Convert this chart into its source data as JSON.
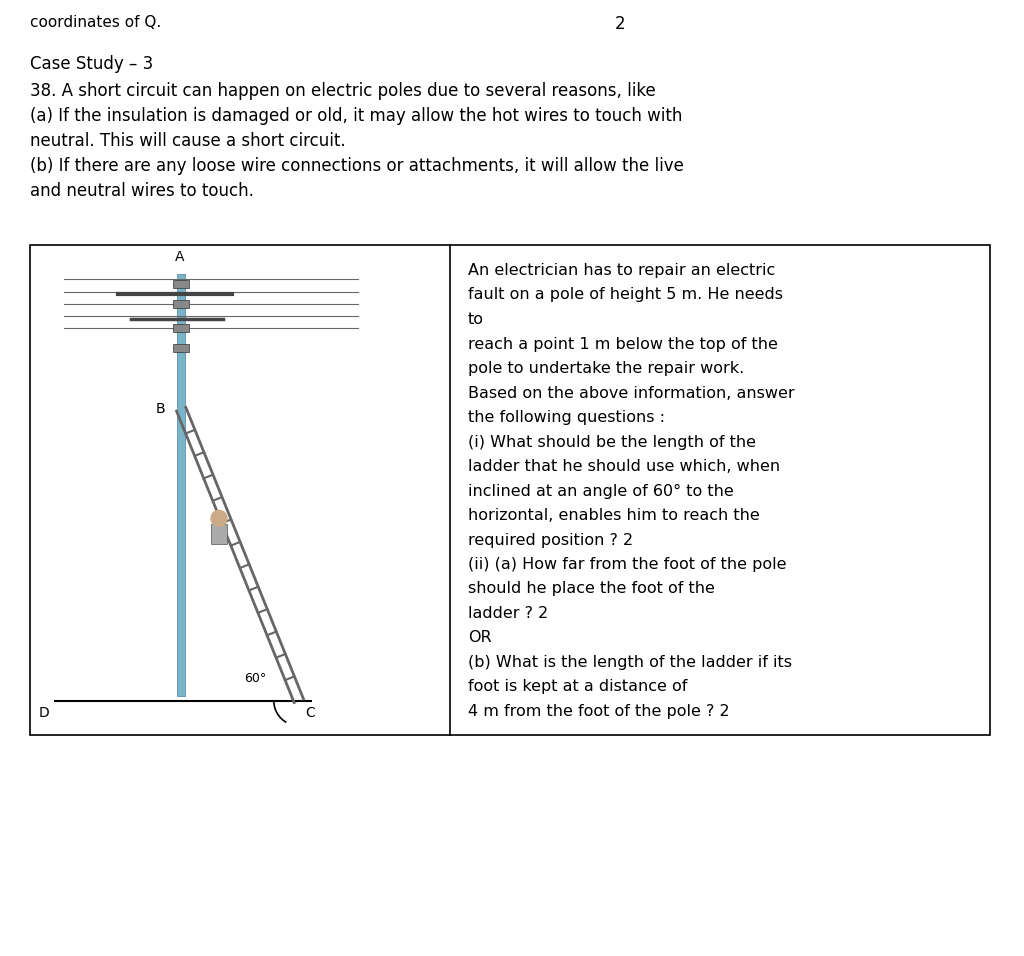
{
  "bg_color": "#ffffff",
  "header_text": "coordinates of Q.",
  "page_number": "2",
  "case_study_title": "Case Study – 3",
  "q38_lines": [
    "38. A short circuit can happen on electric poles due to several reasons, like",
    "(a) If the insulation is damaged or old, it may allow the hot wires to touch with",
    "neutral. This will cause a short circuit.",
    "(b) If there are any loose wire connections or attachments, it will allow the live",
    "and neutral wires to touch."
  ],
  "right_panel_lines": [
    "An electrician has to repair an electric",
    "fault on a pole of height 5 m. He needs",
    "to",
    "reach a point 1 m below the top of the",
    "pole to undertake the repair work.",
    "Based on the above information, answer",
    "the following questions :",
    "(i) What should be the length of the",
    "ladder that he should use which, when",
    "inclined at an angle of 60° to the",
    "horizontal, enables him to reach the",
    "required position ? 2",
    "(ii) (a) How far from the foot of the pole",
    "should he place the foot of the",
    "ladder ? 2",
    "OR",
    "(b) What is the length of the ladder if its",
    "foot is kept at a distance of",
    "4 m from the foot of the pole ? 2"
  ],
  "label_A": "A",
  "label_B": "B",
  "label_C": "C",
  "label_D": "D",
  "angle_label": "60°"
}
